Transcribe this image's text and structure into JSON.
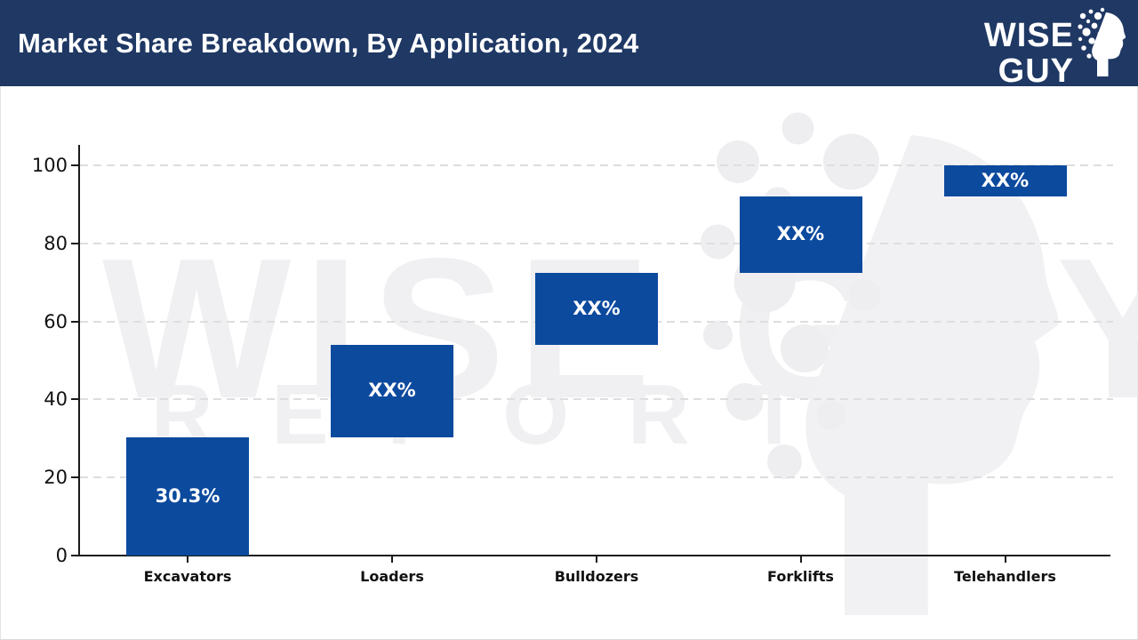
{
  "header": {
    "title": "Market Share Breakdown, By Application, 2024",
    "logo": {
      "line1": "WISE GUY",
      "line2": "REPORTS"
    }
  },
  "watermark": {
    "line1": "WISE GUY",
    "line2": "REPORTS"
  },
  "colors": {
    "header_navy": "#1f3864",
    "bar_blue": "#0c4a9e",
    "grid_gray": "#dedede",
    "axis_black": "#1a1a1a",
    "watermark_gray": "#f0f0f2",
    "text_white": "#ffffff"
  },
  "chart_data": {
    "type": "bar",
    "subtype": "floating-waterfall",
    "title": "Market Share Breakdown, By Application, 2024",
    "categories": [
      "Excavators",
      "Loaders",
      "Bulldozers",
      "Forklifts",
      "Telehandlers"
    ],
    "segments": [
      {
        "category": "Excavators",
        "start": 0,
        "end": 30.3,
        "label": "30.3%"
      },
      {
        "category": "Loaders",
        "start": 30.3,
        "end": 54.0,
        "label": "XX%"
      },
      {
        "category": "Bulldozers",
        "start": 54.0,
        "end": 72.4,
        "label": "XX%"
      },
      {
        "category": "Forklifts",
        "start": 72.4,
        "end": 92.1,
        "label": "XX%"
      },
      {
        "category": "Telehandlers",
        "start": 92.1,
        "end": 100,
        "label": "XX%"
      }
    ],
    "xlabel": "",
    "ylabel": "",
    "yticks": [
      0,
      20,
      40,
      60,
      80,
      100
    ],
    "ylim": [
      0,
      105
    ],
    "grid": {
      "horizontal": true,
      "style": "dashed",
      "color": "#dedede"
    },
    "bar_color": "#0c4a9e",
    "value_label_color": "#ffffff",
    "legend": "none"
  }
}
